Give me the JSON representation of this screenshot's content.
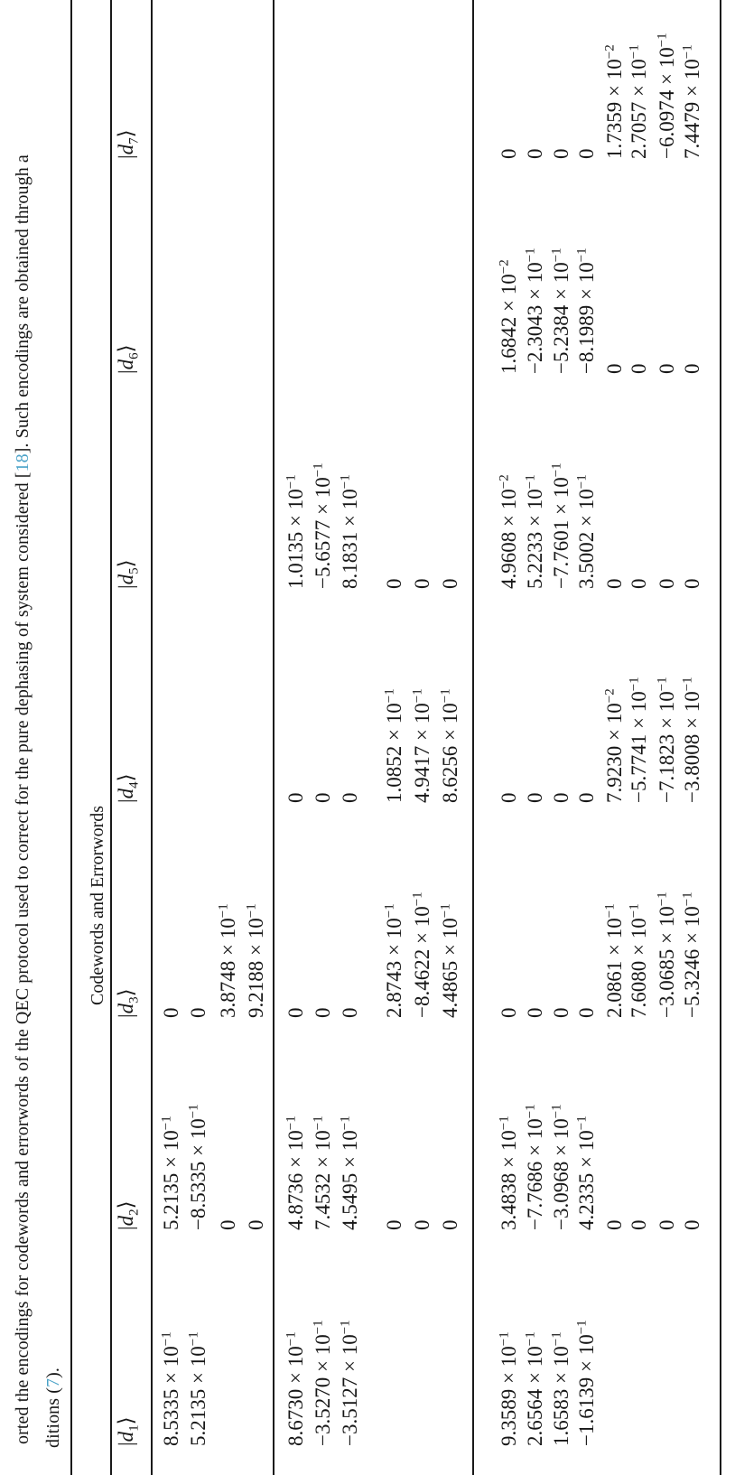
{
  "caption": {
    "line1_pre": "orted the encodings for codewords and errorwords of the QEC protocol used to correct for the pure dephasing of system considered [",
    "line1_ref": "18",
    "line1_post": "]. Such encodings are obtained through a",
    "line2_pre": "ditions (",
    "line2_ref": "7",
    "line2_post": ")."
  },
  "table": {
    "span_header": "Codewords and Errorwords",
    "ket": {
      "open": "|",
      "letter": "d",
      "close": "⟩"
    },
    "columns": [
      {
        "sub": "1",
        "groups": [
          [
            "8.5335 × 10^{−1}",
            "5.2135 × 10^{−1}",
            null,
            null
          ],
          [
            "8.6730 × 10^{−1}",
            "−3.5270 × 10^{−1}",
            "−3.5127 × 10^{−1}",
            null,
            null,
            null
          ],
          [
            "9.3589 × 10^{−1}",
            "2.6564 × 10^{−1}",
            "1.6583 × 10^{−1}",
            "−1.6139 × 10^{−1}",
            null,
            null,
            null,
            null
          ]
        ]
      },
      {
        "sub": "2",
        "groups": [
          [
            "5.2135 × 10^{−1}",
            "−8.5335 × 10^{−1}",
            "0",
            "0"
          ],
          [
            "4.8736 × 10^{−1}",
            "7.4532 × 10^{−1}",
            "4.5495 × 10^{−1}",
            "0",
            "0",
            "0"
          ],
          [
            "3.4838 × 10^{−1}",
            "−7.7686 × 10^{−1}",
            "−3.0968 × 10^{−1}",
            "4.2335 × 10^{−1}",
            "0",
            "0",
            "0",
            "0"
          ]
        ]
      },
      {
        "sub": "3",
        "groups": [
          [
            "0",
            "0",
            "3.8748 × 10^{−1}",
            "9.2188 × 10^{−1}"
          ],
          [
            "0",
            "0",
            "0",
            "2.8743 × 10^{−1}",
            "−8.4622 × 10^{−1}",
            "4.4865 × 10^{−1}"
          ],
          [
            "0",
            "0",
            "0",
            "0",
            "2.0861 × 10^{−1}",
            "7.6080 × 10^{−1}",
            "−3.0685 × 10^{−1}",
            "−5.3246 × 10^{−1}"
          ]
        ]
      },
      {
        "sub": "4",
        "groups": [
          [
            null,
            null,
            null,
            null
          ],
          [
            "0",
            "0",
            "0",
            "1.0852 × 10^{−1}",
            "4.9417 × 10^{−1}",
            "8.6256 × 10^{−1}"
          ],
          [
            "0",
            "0",
            "0",
            "0",
            "7.9230 × 10^{−2}",
            "−5.7741 × 10^{−1}",
            "−7.1823 × 10^{−1}",
            "−3.8008 × 10^{−1}"
          ]
        ]
      },
      {
        "sub": "5",
        "groups": [
          [
            null,
            null,
            null,
            null
          ],
          [
            "1.0135 × 10^{−1}",
            "−5.6577 × 10^{−1}",
            "8.1831 × 10^{−1}",
            "0",
            "0",
            "0"
          ],
          [
            "4.9608 × 10^{−2}",
            "5.2233 × 10^{−1}",
            "−7.7601 × 10^{−1}",
            "3.5002 × 10^{−1}",
            "0",
            "0",
            "0",
            "0"
          ]
        ]
      },
      {
        "sub": "6",
        "groups": [
          [
            null,
            null,
            null,
            null
          ],
          [
            null,
            null,
            null,
            null,
            null,
            null
          ],
          [
            "1.6842 × 10^{−2}",
            "−2.3043 × 10^{−1}",
            "−5.2384 × 10^{−1}",
            "−8.1989 × 10^{−1}",
            "0",
            "0",
            "0",
            "0"
          ]
        ]
      },
      {
        "sub": "7",
        "groups": [
          [
            null,
            null,
            null,
            null
          ],
          [
            null,
            null,
            null,
            null,
            null,
            null
          ],
          [
            "0",
            "0",
            "0",
            "0",
            "1.7359 × 10^{−2}",
            "2.7057 × 10^{−1}",
            "−6.0974 × 10^{−1}",
            "7.4479 × 10^{−1}"
          ]
        ]
      }
    ]
  },
  "colors": {
    "link": "#4aa2c8",
    "text": "#161616",
    "rule": "#1a1a1a"
  }
}
